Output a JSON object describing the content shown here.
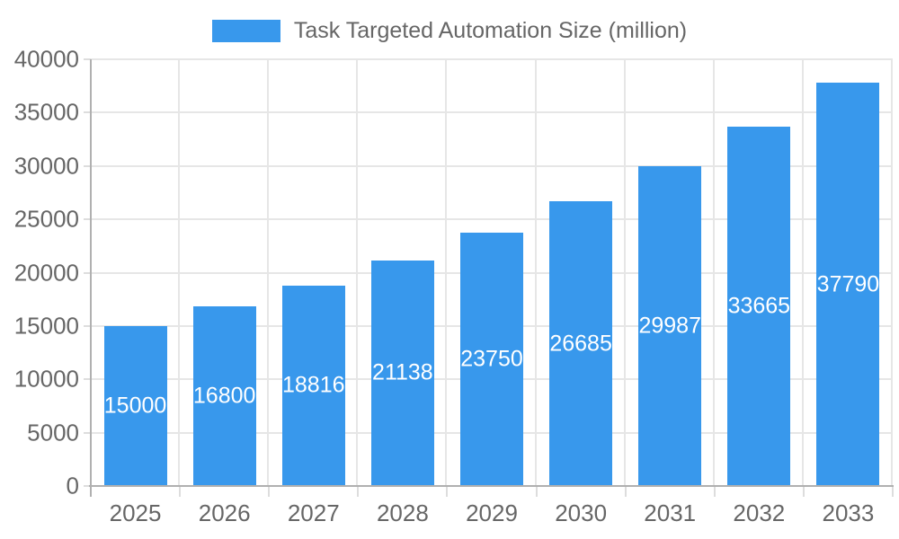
{
  "chart_data": {
    "type": "bar",
    "title": "Task Targeted Automation Size (million)",
    "categories": [
      "2025",
      "2026",
      "2027",
      "2028",
      "2029",
      "2030",
      "2031",
      "2032",
      "2033"
    ],
    "values": [
      15000,
      16800,
      18816,
      21138,
      23750,
      26685,
      29987,
      33665,
      37790
    ],
    "xlabel": "",
    "ylabel": "",
    "ylim": [
      0,
      40000
    ],
    "y_ticks": [
      0,
      5000,
      10000,
      15000,
      20000,
      25000,
      30000,
      35000,
      40000
    ],
    "grid": true,
    "legend_position": "top-center",
    "bar_value_labels_inside": true,
    "colors": {
      "bar": "#3898EC",
      "bar_value_text": "#ffffff",
      "grid": "#e6e6e6",
      "axis": "#b0b0b0",
      "tick": "#dddddd",
      "text": "#666666"
    }
  }
}
